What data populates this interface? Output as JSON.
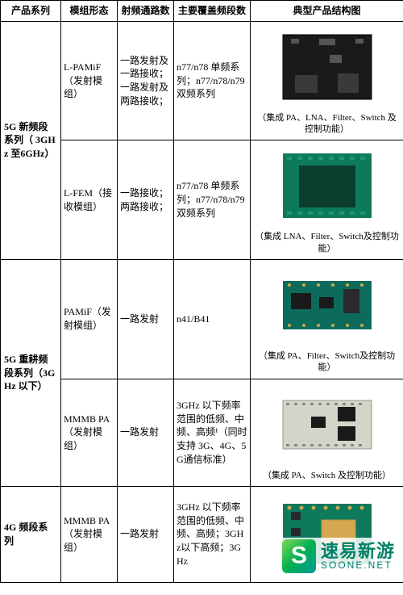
{
  "headers": [
    "产品系列",
    "模组形态",
    "射频通路数",
    "主要覆盖频段数",
    "典型产品结构图"
  ],
  "rows": [
    {
      "series": "5G 新频段系列（ 3GHz 至6GHz）",
      "rowspan": 2,
      "items": [
        {
          "form": "L-PAMiF（发射模组）",
          "channels": "一路发射及一路接收；一路发射及两路接收；",
          "bands": "n77/n78 单频系列；n77/n78/n79双频系列",
          "caption": "（集成 PA、LNA、Filter、Switch 及控制功能）",
          "chip": {
            "bg": "#1a1a1a",
            "die": "#3a3a3a",
            "pins": "#555",
            "type": "dark"
          }
        },
        {
          "form": "L-FEM（接收模组）",
          "channels": "一路接收；两路接收；",
          "bands": "n77/n78 单频系列；n77/n78/n79双频系列",
          "caption": "（集成 LNA、Filter、Switch及控制功能）",
          "chip": {
            "bg": "#0d7a5c",
            "die": "#0a3d2e",
            "pins": "#1a9970",
            "type": "green-die"
          }
        }
      ]
    },
    {
      "series": "5G 重耕频段系列（3GHz 以下）",
      "rowspan": 2,
      "items": [
        {
          "form": "PAMiF（发射模组）",
          "channels": "一路发射",
          "bands": "n41/B41",
          "caption": "（集成 PA、Filter、Switch及控制功能）",
          "chip": {
            "bg": "#0d6b5c",
            "die": "#1a1a1a",
            "pins": "#c9a850",
            "type": "green-board"
          }
        },
        {
          "form": "MMMB PA（发射模组）",
          "channels": "一路发射",
          "bands": "3GHz 以下频率范围的低频、中频、高频¹（同时支持 3G、4G、5G通信标准）",
          "caption": "（集成 PA、Switch 及控制功能）",
          "chip": {
            "bg": "#d4d4c8",
            "die": "#1a1a1a",
            "pins": "#888",
            "type": "white-board"
          }
        }
      ]
    },
    {
      "series": "4G 频段系列",
      "rowspan": 1,
      "items": [
        {
          "form": "MMMB PA（发射模组）",
          "channels": "一路发射",
          "bands": "3GHz 以下频率范围的低频、中频、高频；3GHz以下高频；3GHz",
          "caption": "",
          "chip": {
            "bg": "#0d7a5c",
            "die": "#d4a850",
            "pins": "#c9a850",
            "type": "gold-die"
          }
        }
      ]
    }
  ],
  "logo": {
    "cn": "速易新游",
    "en": "SOONE.NET"
  }
}
